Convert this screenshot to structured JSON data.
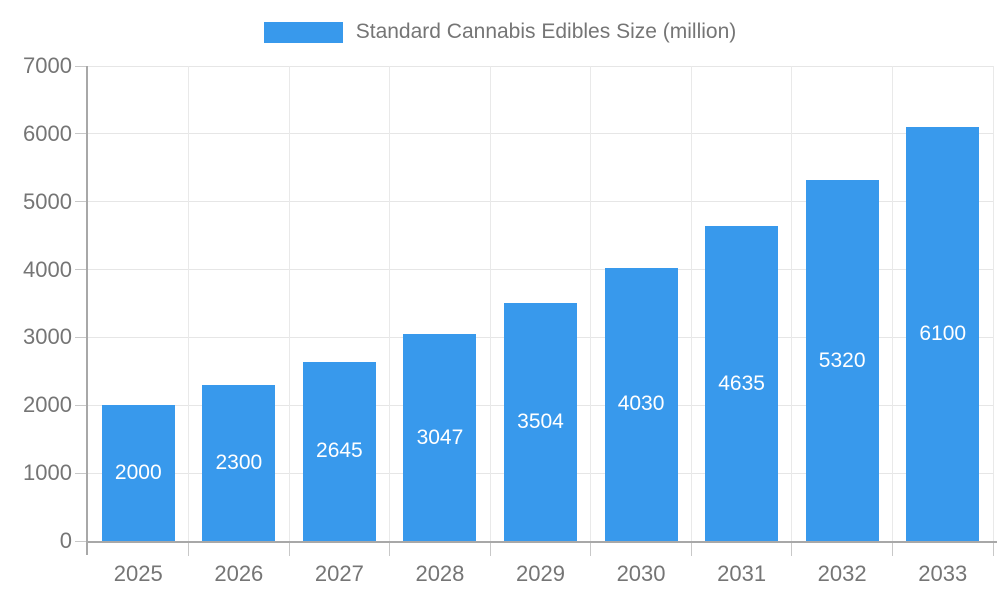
{
  "legend": {
    "label": "Standard Cannabis Edibles Size (million)"
  },
  "chart_data": {
    "type": "bar",
    "title": "",
    "legend_entries": [
      "Standard Cannabis Edibles Size (million)"
    ],
    "legend_position": "top",
    "categories": [
      "2025",
      "2026",
      "2027",
      "2028",
      "2029",
      "2030",
      "2031",
      "2032",
      "2033"
    ],
    "series": [
      {
        "name": "Standard Cannabis Edibles Size (million)",
        "values": [
          2000,
          2300,
          2645,
          3047,
          3504,
          4030,
          4635,
          5320,
          6100
        ]
      }
    ],
    "data_labels_shown": true,
    "xlabel": "",
    "ylabel": "",
    "ylim": [
      0,
      7000
    ],
    "yticks": [
      0,
      1000,
      2000,
      3000,
      4000,
      5000,
      6000,
      7000
    ],
    "grid": true,
    "colors": {
      "bar": "#3899ec",
      "grid_horizontal": "#e6e6e6",
      "grid_vertical": "#e9e9e9",
      "axis_line": "#a8a8a8",
      "tick": "#c8c8c8",
      "axis_label": "#757575",
      "bar_label": "#ffffff",
      "background": "#ffffff"
    }
  }
}
